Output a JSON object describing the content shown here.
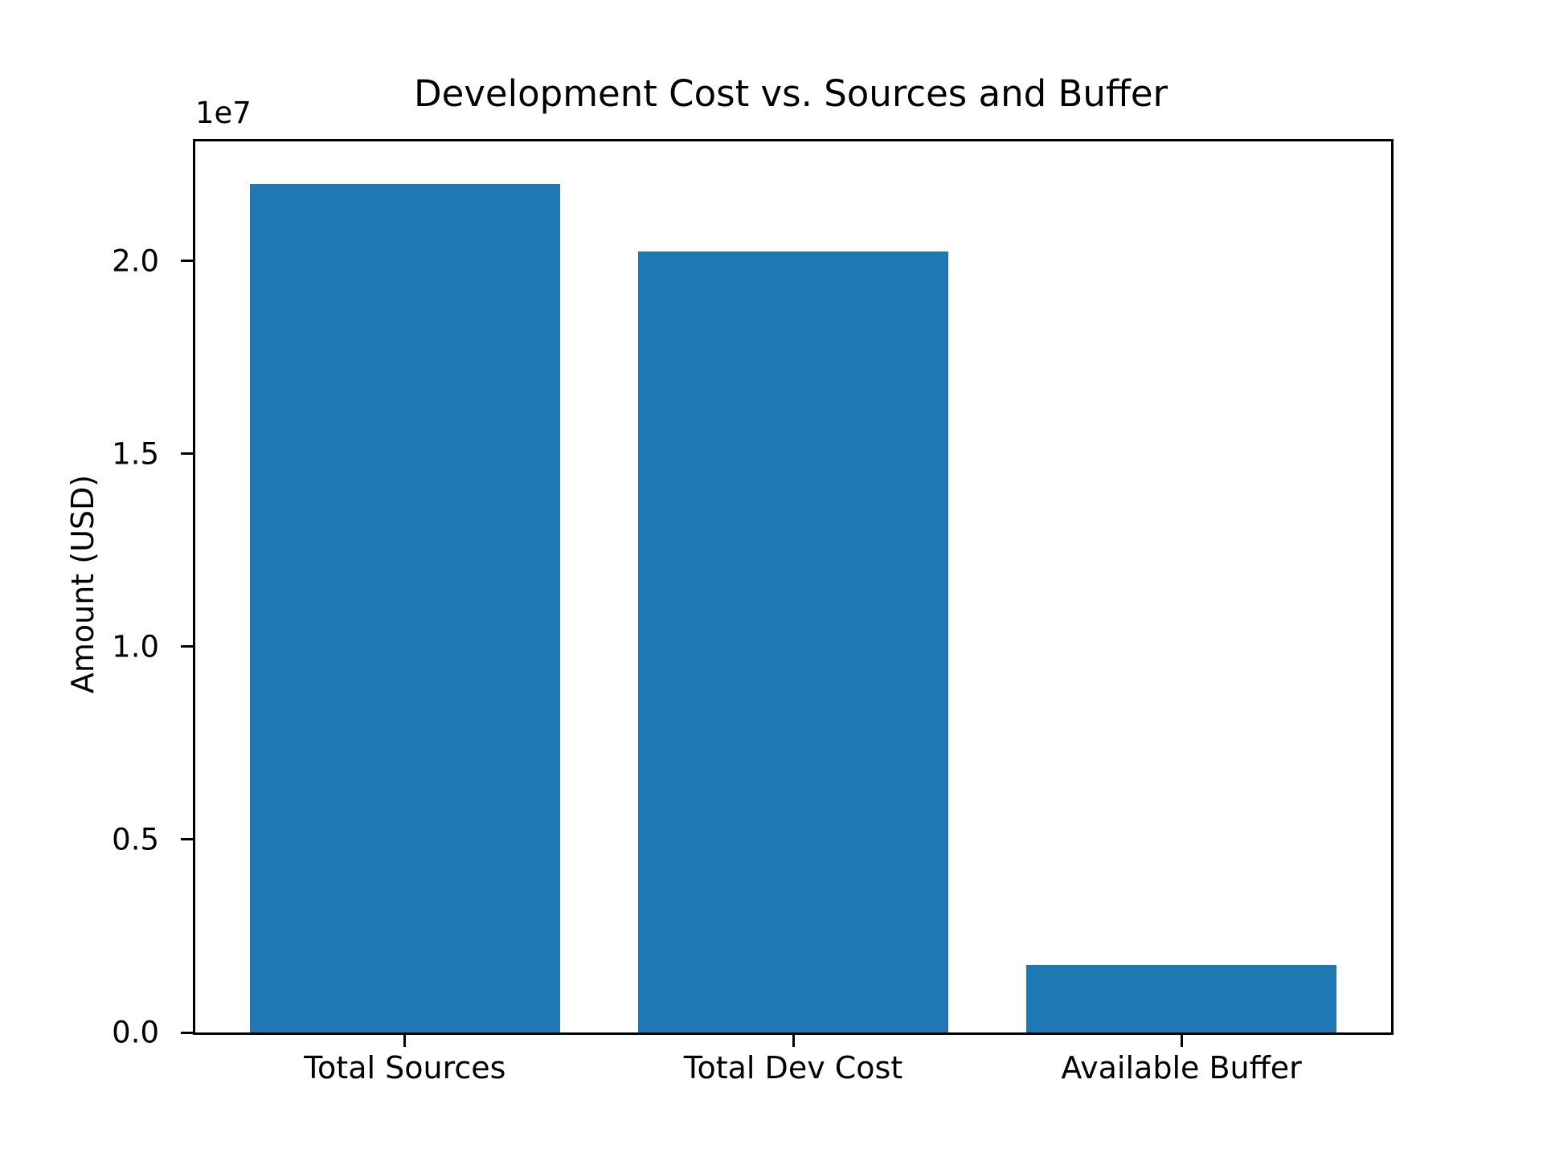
{
  "chart_data": {
    "type": "bar",
    "title": "Development Cost vs. Sources and Buffer",
    "categories": [
      "Total Sources",
      "Total Dev Cost",
      "Available Buffer"
    ],
    "values": [
      22000000,
      20250000,
      1750000
    ],
    "xlabel": "",
    "ylabel": "Amount (USD)",
    "offset_text": "1e7",
    "yticks": [
      0,
      5000000,
      10000000,
      15000000,
      20000000
    ],
    "ytick_labels": [
      "0.0",
      "0.5",
      "1.0",
      "1.5",
      "2.0"
    ],
    "ylim": [
      0,
      23100000
    ],
    "xlim": [
      -0.54,
      2.54
    ],
    "bar_width_fraction": 0.8,
    "bar_color": "#1f77b4",
    "axis_color": "#000000",
    "background_color": "#ffffff",
    "grid": false,
    "legend": null
  }
}
